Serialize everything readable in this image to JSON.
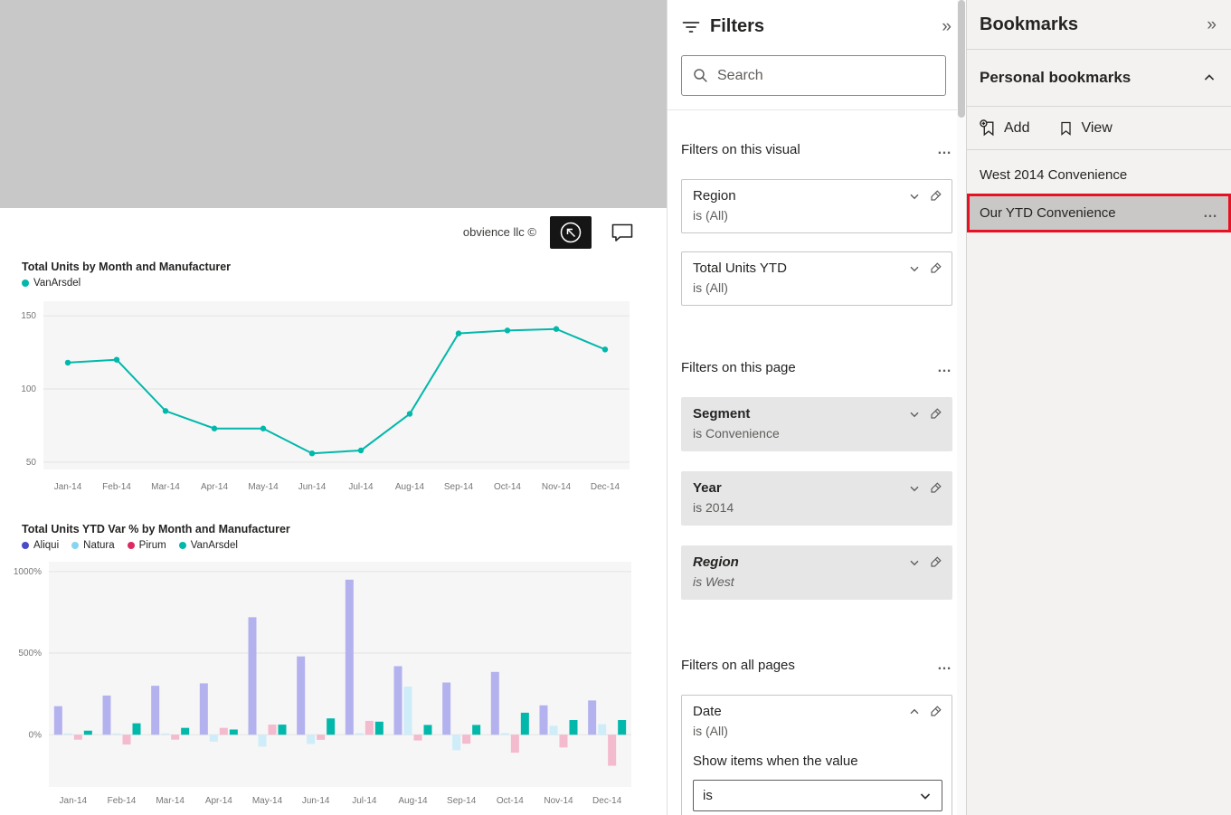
{
  "report": {
    "attribution": "obvience llc ©"
  },
  "icons": {
    "collapse_pane": "»",
    "more_options": "…"
  },
  "colors": {
    "accent_teal": "#01B8AA",
    "bookmark_selected_border": "#E81123",
    "filter_card_gray": "#E6E6E6"
  },
  "chart_data": [
    {
      "type": "line",
      "title": "Total Units by Month and Manufacturer",
      "categories": [
        "Jan-14",
        "Feb-14",
        "Mar-14",
        "Apr-14",
        "May-14",
        "Jun-14",
        "Jul-14",
        "Aug-14",
        "Sep-14",
        "Oct-14",
        "Nov-14",
        "Dec-14"
      ],
      "series": [
        {
          "name": "VanArsdel",
          "color": "#01B8AA",
          "values": [
            118,
            120,
            85,
            73,
            73,
            56,
            58,
            83,
            138,
            140,
            141,
            127
          ]
        }
      ],
      "ylim": [
        45,
        160
      ],
      "yticks": [
        50,
        100,
        150
      ],
      "ytick_suffix": "",
      "grid": true,
      "legend_position": "top-left"
    },
    {
      "type": "bar",
      "title": "Total Units YTD Var % by Month and Manufacturer",
      "categories": [
        "Jan-14",
        "Feb-14",
        "Mar-14",
        "Apr-14",
        "May-14",
        "Jun-14",
        "Jul-14",
        "Aug-14",
        "Sep-14",
        "Oct-14",
        "Nov-14",
        "Dec-14"
      ],
      "series": [
        {
          "name": "Aliqui",
          "color": "#4B4BC8",
          "bar_color": "#B3B2EF",
          "values": [
            175,
            240,
            300,
            315,
            720,
            480,
            950,
            420,
            320,
            385,
            180,
            210
          ]
        },
        {
          "name": "Natura",
          "color": "#88D4F0",
          "bar_color": "#CEEDF9",
          "values": [
            8,
            8,
            8,
            -42,
            -73,
            -57,
            10,
            295,
            -95,
            10,
            55,
            65
          ]
        },
        {
          "name": "Pirum",
          "color": "#DE2862",
          "bar_color": "#F4BACD",
          "values": [
            -30,
            -60,
            -30,
            42,
            62,
            -31,
            85,
            -35,
            -55,
            -110,
            -78,
            -190
          ]
        },
        {
          "name": "VanArsdel",
          "color": "#01B8AA",
          "bar_color": "#01B8AA",
          "values": [
            25,
            70,
            42,
            32,
            62,
            100,
            80,
            60,
            60,
            135,
            90,
            90
          ]
        }
      ],
      "ylim": [
        -320,
        1060
      ],
      "yticks": [
        0,
        500,
        1000
      ],
      "ytick_suffix": "%",
      "grid": true,
      "legend_position": "top-left"
    }
  ],
  "filters_pane": {
    "title": "Filters",
    "search_placeholder": "Search",
    "sections": [
      {
        "title": "Filters on this visual",
        "cards": [
          {
            "name": "Region",
            "value": "is (All)",
            "bold": false,
            "italic": false,
            "expanded": false
          },
          {
            "name": "Total Units YTD",
            "value": "is (All)",
            "bold": false,
            "italic": false,
            "expanded": false
          }
        ]
      },
      {
        "title": "Filters on this page",
        "cards": [
          {
            "name": "Segment",
            "value": "is Convenience",
            "bold": true,
            "italic": false,
            "expanded": false
          },
          {
            "name": "Year",
            "value": "is 2014",
            "bold": true,
            "italic": false,
            "expanded": false
          },
          {
            "name": "Region",
            "value": "is West",
            "bold": true,
            "italic": true,
            "expanded": false
          }
        ]
      },
      {
        "title": "Filters on all pages",
        "cards": [
          {
            "name": "Date",
            "value": "is (All)",
            "bold": false,
            "italic": false,
            "expanded": true,
            "condition_label": "Show items when the value",
            "operator": "is"
          }
        ]
      }
    ]
  },
  "bookmarks_pane": {
    "title": "Bookmarks",
    "group_title": "Personal bookmarks",
    "actions": [
      {
        "label": "Add"
      },
      {
        "label": "View"
      }
    ],
    "items": [
      {
        "label": "West 2014 Convenience",
        "selected": false
      },
      {
        "label": "Our YTD Convenience",
        "selected": true
      }
    ]
  }
}
